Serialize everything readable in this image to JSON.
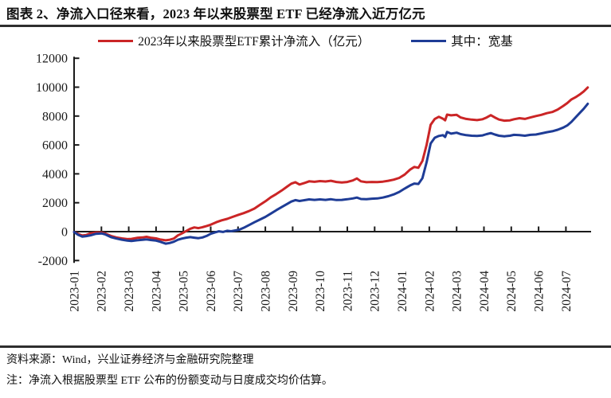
{
  "header": {
    "title": "图表 2、净流入口径来看，2023 年以来股票型 ETF 已经净流入近万亿元"
  },
  "footer": {
    "source": "资料来源：Wind，兴业证券经济与金融研究院整理",
    "note": "注：净流入根据股票型 ETF 公布的份额变动与日度成交均价估算。"
  },
  "chart_data": {
    "type": "line",
    "legend_position": "top",
    "grid": false,
    "axis_color": "#1a1a1a",
    "ylim": [
      -2000,
      12000
    ],
    "y_ticks": [
      12000,
      10000,
      8000,
      6000,
      4000,
      2000,
      0,
      -2000
    ],
    "x_categories": [
      "2023-01",
      "2023-02",
      "2023-03",
      "2023-04",
      "2023-05",
      "2023-06",
      "2023-07",
      "2023-08",
      "2023-09",
      "2023-10",
      "2023-11",
      "2023-12",
      "2024-01",
      "2024-02",
      "2024-03",
      "2024-04",
      "2024-05",
      "2024-06",
      "2024-07"
    ],
    "x_axis_note": "x values in series points are fractional months since 2023-01",
    "series": [
      {
        "name": "2023年以来股票型ETF累计净流入（亿元）",
        "color": "#cb2526",
        "points": [
          [
            0,
            -20
          ],
          [
            0.15,
            -160
          ],
          [
            0.3,
            -270
          ],
          [
            0.45,
            -230
          ],
          [
            0.6,
            -120
          ],
          [
            0.8,
            -60
          ],
          [
            1,
            -60
          ],
          [
            1.15,
            -140
          ],
          [
            1.35,
            -300
          ],
          [
            1.55,
            -400
          ],
          [
            1.75,
            -470
          ],
          [
            1.95,
            -520
          ],
          [
            2.1,
            -500
          ],
          [
            2.3,
            -430
          ],
          [
            2.5,
            -400
          ],
          [
            2.65,
            -360
          ],
          [
            2.8,
            -420
          ],
          [
            3,
            -470
          ],
          [
            3.15,
            -540
          ],
          [
            3.35,
            -600
          ],
          [
            3.5,
            -560
          ],
          [
            3.65,
            -480
          ],
          [
            3.8,
            -260
          ],
          [
            3.95,
            -120
          ],
          [
            4.1,
            40
          ],
          [
            4.25,
            200
          ],
          [
            4.4,
            290
          ],
          [
            4.55,
            240
          ],
          [
            4.7,
            310
          ],
          [
            4.85,
            390
          ],
          [
            5,
            480
          ],
          [
            5.2,
            650
          ],
          [
            5.4,
            780
          ],
          [
            5.6,
            880
          ],
          [
            5.8,
            1020
          ],
          [
            6,
            1150
          ],
          [
            6.2,
            1280
          ],
          [
            6.4,
            1420
          ],
          [
            6.6,
            1600
          ],
          [
            6.8,
            1850
          ],
          [
            7,
            2100
          ],
          [
            7.2,
            2380
          ],
          [
            7.4,
            2600
          ],
          [
            7.6,
            2850
          ],
          [
            7.8,
            3120
          ],
          [
            7.95,
            3320
          ],
          [
            8.1,
            3420
          ],
          [
            8.25,
            3260
          ],
          [
            8.45,
            3380
          ],
          [
            8.6,
            3480
          ],
          [
            8.8,
            3450
          ],
          [
            9,
            3500
          ],
          [
            9.2,
            3470
          ],
          [
            9.4,
            3520
          ],
          [
            9.6,
            3440
          ],
          [
            9.8,
            3400
          ],
          [
            10,
            3440
          ],
          [
            10.2,
            3540
          ],
          [
            10.35,
            3680
          ],
          [
            10.5,
            3480
          ],
          [
            10.7,
            3420
          ],
          [
            10.9,
            3440
          ],
          [
            11.1,
            3430
          ],
          [
            11.3,
            3460
          ],
          [
            11.5,
            3520
          ],
          [
            11.7,
            3600
          ],
          [
            11.9,
            3720
          ],
          [
            12.1,
            3950
          ],
          [
            12.3,
            4300
          ],
          [
            12.45,
            4480
          ],
          [
            12.6,
            4420
          ],
          [
            12.75,
            4900
          ],
          [
            12.9,
            6000
          ],
          [
            13.05,
            7400
          ],
          [
            13.2,
            7800
          ],
          [
            13.35,
            7950
          ],
          [
            13.5,
            7820
          ],
          [
            13.58,
            7700
          ],
          [
            13.65,
            8100
          ],
          [
            13.8,
            8050
          ],
          [
            14,
            8080
          ],
          [
            14.15,
            7900
          ],
          [
            14.35,
            7800
          ],
          [
            14.55,
            7750
          ],
          [
            14.75,
            7720
          ],
          [
            14.95,
            7780
          ],
          [
            15.1,
            7900
          ],
          [
            15.25,
            8060
          ],
          [
            15.4,
            7900
          ],
          [
            15.55,
            7760
          ],
          [
            15.75,
            7680
          ],
          [
            15.95,
            7700
          ],
          [
            16.1,
            7780
          ],
          [
            16.3,
            7850
          ],
          [
            16.5,
            7800
          ],
          [
            16.7,
            7900
          ],
          [
            16.9,
            8000
          ],
          [
            17.1,
            8080
          ],
          [
            17.3,
            8200
          ],
          [
            17.5,
            8280
          ],
          [
            17.7,
            8450
          ],
          [
            17.9,
            8700
          ],
          [
            18.05,
            8900
          ],
          [
            18.2,
            9150
          ],
          [
            18.35,
            9300
          ],
          [
            18.5,
            9480
          ],
          [
            18.65,
            9700
          ],
          [
            18.8,
            9980
          ]
        ]
      },
      {
        "name": "其中：宽基",
        "color": "#1e3c96",
        "points": [
          [
            0,
            -30
          ],
          [
            0.15,
            -220
          ],
          [
            0.3,
            -340
          ],
          [
            0.45,
            -310
          ],
          [
            0.6,
            -260
          ],
          [
            0.8,
            -150
          ],
          [
            1,
            -120
          ],
          [
            1.15,
            -200
          ],
          [
            1.35,
            -380
          ],
          [
            1.55,
            -480
          ],
          [
            1.75,
            -560
          ],
          [
            1.95,
            -620
          ],
          [
            2.1,
            -650
          ],
          [
            2.3,
            -600
          ],
          [
            2.5,
            -570
          ],
          [
            2.65,
            -540
          ],
          [
            2.8,
            -580
          ],
          [
            3,
            -620
          ],
          [
            3.15,
            -700
          ],
          [
            3.35,
            -830
          ],
          [
            3.5,
            -790
          ],
          [
            3.65,
            -700
          ],
          [
            3.8,
            -560
          ],
          [
            3.95,
            -480
          ],
          [
            4.1,
            -420
          ],
          [
            4.25,
            -380
          ],
          [
            4.4,
            -420
          ],
          [
            4.55,
            -450
          ],
          [
            4.7,
            -400
          ],
          [
            4.85,
            -300
          ],
          [
            5,
            -150
          ],
          [
            5.15,
            -60
          ],
          [
            5.3,
            20
          ],
          [
            5.45,
            -20
          ],
          [
            5.6,
            60
          ],
          [
            5.75,
            30
          ],
          [
            5.9,
            80
          ],
          [
            6.05,
            140
          ],
          [
            6.2,
            260
          ],
          [
            6.4,
            450
          ],
          [
            6.6,
            650
          ],
          [
            6.8,
            830
          ],
          [
            7,
            1020
          ],
          [
            7.2,
            1250
          ],
          [
            7.4,
            1480
          ],
          [
            7.6,
            1700
          ],
          [
            7.8,
            1920
          ],
          [
            7.95,
            2080
          ],
          [
            8.1,
            2180
          ],
          [
            8.25,
            2120
          ],
          [
            8.45,
            2180
          ],
          [
            8.6,
            2230
          ],
          [
            8.8,
            2200
          ],
          [
            9,
            2230
          ],
          [
            9.2,
            2200
          ],
          [
            9.4,
            2240
          ],
          [
            9.6,
            2190
          ],
          [
            9.8,
            2200
          ],
          [
            10,
            2240
          ],
          [
            10.2,
            2300
          ],
          [
            10.35,
            2360
          ],
          [
            10.5,
            2260
          ],
          [
            10.7,
            2240
          ],
          [
            10.9,
            2280
          ],
          [
            11.1,
            2300
          ],
          [
            11.3,
            2360
          ],
          [
            11.5,
            2450
          ],
          [
            11.7,
            2580
          ],
          [
            11.9,
            2750
          ],
          [
            12.1,
            2980
          ],
          [
            12.3,
            3200
          ],
          [
            12.45,
            3330
          ],
          [
            12.6,
            3300
          ],
          [
            12.75,
            3700
          ],
          [
            12.9,
            4800
          ],
          [
            13.05,
            6100
          ],
          [
            13.2,
            6500
          ],
          [
            13.35,
            6620
          ],
          [
            13.5,
            6680
          ],
          [
            13.58,
            6550
          ],
          [
            13.65,
            6900
          ],
          [
            13.8,
            6780
          ],
          [
            14,
            6850
          ],
          [
            14.15,
            6750
          ],
          [
            14.35,
            6680
          ],
          [
            14.55,
            6640
          ],
          [
            14.75,
            6620
          ],
          [
            14.95,
            6660
          ],
          [
            15.1,
            6750
          ],
          [
            15.25,
            6820
          ],
          [
            15.4,
            6720
          ],
          [
            15.55,
            6640
          ],
          [
            15.75,
            6600
          ],
          [
            15.95,
            6640
          ],
          [
            16.1,
            6700
          ],
          [
            16.3,
            6680
          ],
          [
            16.5,
            6640
          ],
          [
            16.7,
            6700
          ],
          [
            16.9,
            6720
          ],
          [
            17.1,
            6800
          ],
          [
            17.3,
            6880
          ],
          [
            17.5,
            6950
          ],
          [
            17.7,
            7050
          ],
          [
            17.9,
            7200
          ],
          [
            18.05,
            7350
          ],
          [
            18.2,
            7600
          ],
          [
            18.35,
            7900
          ],
          [
            18.5,
            8200
          ],
          [
            18.65,
            8500
          ],
          [
            18.8,
            8850
          ]
        ]
      }
    ]
  }
}
